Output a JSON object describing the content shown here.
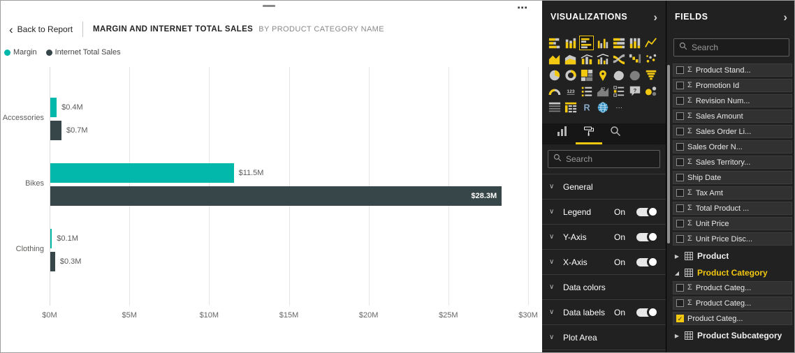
{
  "report": {
    "more_options_glyph": "⋯",
    "back_label": "Back to Report",
    "title": "MARGIN AND INTERNET TOTAL SALES",
    "subtitle": "BY PRODUCT CATEGORY NAME"
  },
  "chart_data": {
    "type": "bar",
    "orientation": "horizontal",
    "title": "Margin and Internet Total Sales by Product Category Name",
    "categories": [
      "Accessories",
      "Bikes",
      "Clothing"
    ],
    "series": [
      {
        "name": "Margin",
        "color": "#01B8AA",
        "values": [
          0.4,
          11.5,
          0.1
        ],
        "data_labels": [
          "$0.4M",
          "$11.5M",
          "$0.1M"
        ]
      },
      {
        "name": "Internet Total Sales",
        "color": "#374649",
        "values": [
          0.7,
          28.3,
          0.3
        ],
        "data_labels": [
          "$0.7M",
          "$28.3M",
          "$0.3M"
        ]
      }
    ],
    "x_axis": {
      "ticks": [
        "$0M",
        "$5M",
        "$10M",
        "$15M",
        "$20M",
        "$25M",
        "$30M"
      ],
      "min": 0,
      "max": 30,
      "unit": "M"
    },
    "grid": true,
    "legend_position": "top-left"
  },
  "glyphs": {
    "chevron_down": "∨",
    "collapse": "›",
    "sigma": "Σ",
    "check": "✓",
    "triangle_right": "▶",
    "triangle_open": "◢",
    "back": "‹"
  },
  "colors": {
    "accent_teal": "#01B8AA",
    "bar_dark": "#374649",
    "accent_yellow": "#F2C811"
  },
  "visualizations": {
    "title": "VISUALIZATIONS",
    "search_placeholder": "Search",
    "selected_visual": "clustered-bar-chart",
    "icons": [
      {
        "name": "stacked-bar-chart",
        "glyph": "bars-h-stacked"
      },
      {
        "name": "stacked-column-chart",
        "glyph": "bars-v-stacked"
      },
      {
        "name": "clustered-bar-chart",
        "glyph": "bars-h-clustered",
        "selected": true
      },
      {
        "name": "clustered-column-chart",
        "glyph": "bars-v-clustered"
      },
      {
        "name": "100-stacked-bar-chart",
        "glyph": "bars-h-100"
      },
      {
        "name": "100-stacked-column-chart",
        "glyph": "bars-v-100"
      },
      {
        "name": "line-chart",
        "glyph": "line"
      },
      {
        "name": "area-chart",
        "glyph": "area"
      },
      {
        "name": "stacked-area-chart",
        "glyph": "area-stacked"
      },
      {
        "name": "line-and-stacked-column-chart",
        "glyph": "combo"
      },
      {
        "name": "line-and-clustered-column-chart",
        "glyph": "combo2"
      },
      {
        "name": "ribbon-chart",
        "glyph": "ribbon"
      },
      {
        "name": "waterfall-chart",
        "glyph": "waterfall"
      },
      {
        "name": "scatter-chart",
        "glyph": "scatter"
      },
      {
        "name": "pie-chart",
        "glyph": "pie"
      },
      {
        "name": "donut-chart",
        "glyph": "donut"
      },
      {
        "name": "treemap",
        "glyph": "treemap"
      },
      {
        "name": "map",
        "glyph": "map"
      },
      {
        "name": "filled-map",
        "glyph": "filled-map"
      },
      {
        "name": "shape-map",
        "glyph": "shape-map"
      },
      {
        "name": "funnel",
        "glyph": "funnel"
      },
      {
        "name": "gauge",
        "glyph": "gauge"
      },
      {
        "name": "card",
        "glyph": "card"
      },
      {
        "name": "multi-row-card",
        "glyph": "multirow"
      },
      {
        "name": "kpi",
        "glyph": "kpi"
      },
      {
        "name": "slicer",
        "glyph": "slicer"
      },
      {
        "name": "q-and-a",
        "glyph": "qa"
      },
      {
        "name": "key-influencers",
        "glyph": "ki"
      },
      {
        "name": "table",
        "glyph": "table"
      },
      {
        "name": "matrix",
        "glyph": "matrix"
      },
      {
        "name": "r-script-visual",
        "glyph": "r"
      },
      {
        "name": "arcgis-map",
        "glyph": "globe"
      },
      {
        "name": "more-options",
        "glyph": "dots"
      }
    ],
    "tabs": [
      {
        "name": "fields-tab",
        "selected": false
      },
      {
        "name": "format-tab",
        "selected": true
      },
      {
        "name": "analytics-tab",
        "selected": false
      }
    ],
    "sections": [
      {
        "label": "General"
      },
      {
        "label": "Legend",
        "toggle": "On"
      },
      {
        "label": "Y-Axis",
        "toggle": "On"
      },
      {
        "label": "X-Axis",
        "toggle": "On"
      },
      {
        "label": "Data colors"
      },
      {
        "label": "Data labels",
        "toggle": "On"
      },
      {
        "label": "Plot Area"
      }
    ]
  },
  "fields": {
    "title": "FIELDS",
    "search_placeholder": "Search",
    "items": [
      {
        "type": "field",
        "sigma": true,
        "checked": false,
        "label": "Product Stand..."
      },
      {
        "type": "field",
        "sigma": true,
        "checked": false,
        "label": "Promotion Id"
      },
      {
        "type": "field",
        "sigma": true,
        "checked": false,
        "label": "Revision Num..."
      },
      {
        "type": "field",
        "sigma": true,
        "checked": false,
        "label": "Sales Amount"
      },
      {
        "type": "field",
        "sigma": true,
        "checked": false,
        "label": "Sales Order Li..."
      },
      {
        "type": "field",
        "sigma": false,
        "checked": false,
        "label": "Sales Order N..."
      },
      {
        "type": "field",
        "sigma": true,
        "checked": false,
        "label": "Sales Territory..."
      },
      {
        "type": "field",
        "sigma": false,
        "checked": false,
        "label": "Ship Date"
      },
      {
        "type": "field",
        "sigma": true,
        "checked": false,
        "label": "Tax Amt"
      },
      {
        "type": "field",
        "sigma": true,
        "checked": false,
        "label": "Total Product ..."
      },
      {
        "type": "field",
        "sigma": true,
        "checked": false,
        "label": "Unit Price"
      },
      {
        "type": "field",
        "sigma": true,
        "checked": false,
        "label": "Unit Price Disc..."
      },
      {
        "type": "table",
        "expanded": false,
        "selected": false,
        "label": "Product"
      },
      {
        "type": "table",
        "expanded": true,
        "selected": true,
        "label": "Product Category"
      },
      {
        "type": "field",
        "sigma": true,
        "checked": false,
        "label": "Product Categ..."
      },
      {
        "type": "field",
        "sigma": true,
        "checked": false,
        "label": "Product Categ..."
      },
      {
        "type": "field",
        "sigma": false,
        "checked": true,
        "label": "Product Categ..."
      },
      {
        "type": "table",
        "expanded": false,
        "selected": false,
        "label": "Product Subcategory"
      }
    ]
  }
}
